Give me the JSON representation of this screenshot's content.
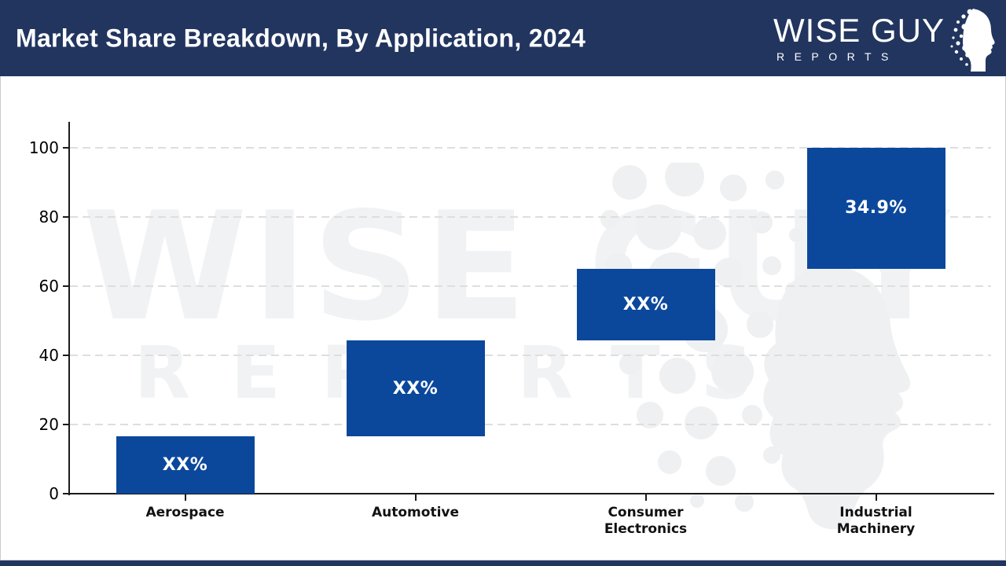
{
  "header": {
    "title": "Market Share Breakdown, By Application, 2024",
    "logo": {
      "line1": "WISE GUY",
      "line2": "REPORTS"
    }
  },
  "watermark": {
    "line1": "WISE GUY",
    "line2": "REPORTS"
  },
  "colors": {
    "header_bg": "#21355f",
    "footer_bg": "#21355f",
    "bar_fill": "#0b489c",
    "bar_label_text": "#ffffff",
    "axis": "#1a1a1a",
    "gridline": "#dedede",
    "watermark": "#f1f2f4",
    "title_text": "#ffffff"
  },
  "chart_data": {
    "type": "bar",
    "subtype": "floating-waterfall",
    "title": "Market Share Breakdown, By Application, 2024",
    "xlabel": "",
    "ylabel": "",
    "categories": [
      "Aerospace",
      "Automotive",
      "Consumer\nElectronics",
      "Industrial\nMachinery"
    ],
    "segments": [
      {
        "category": "Aerospace",
        "start": 0,
        "end": 16.5,
        "label": "XX%"
      },
      {
        "category": "Automotive",
        "start": 16.5,
        "end": 44.4,
        "label": "XX%"
      },
      {
        "category": "Consumer Electronics",
        "start": 44.4,
        "end": 65.1,
        "label": "XX%"
      },
      {
        "category": "Industrial Machinery",
        "start": 65.1,
        "end": 100,
        "label": "34.9%"
      }
    ],
    "ylim": [
      0,
      100
    ],
    "yticks": [
      0,
      20,
      40,
      60,
      80,
      100
    ],
    "grid": "horizontal-dashed",
    "legend": "none"
  }
}
